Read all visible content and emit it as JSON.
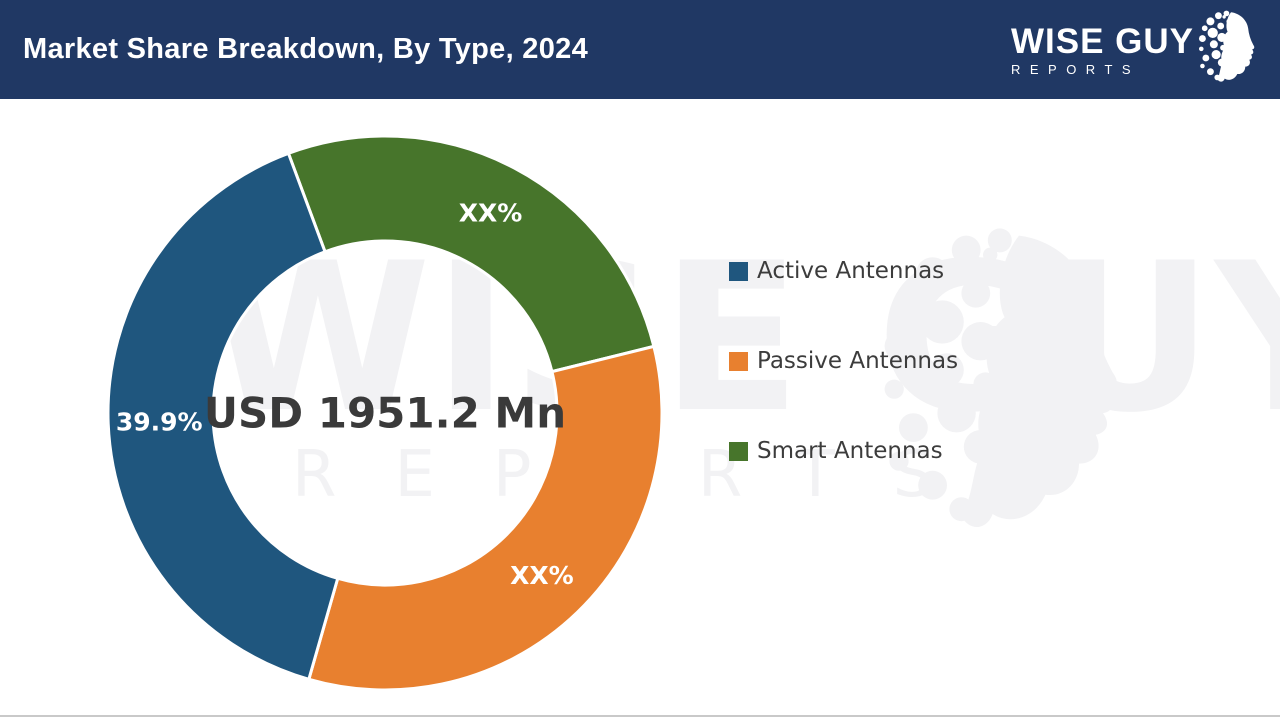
{
  "header": {
    "title": "Market Share Breakdown, By Type, 2024",
    "logo": {
      "wordmark": "WISE GUY",
      "subtitle": "REPORTS"
    }
  },
  "watermark": {
    "wordmark": "WISE GUY",
    "subtitle": "REPORTS"
  },
  "chart_data": {
    "type": "pie",
    "subtype": "donut",
    "title": "Market Share Breakdown, By Type, 2024",
    "center_label": "USD 1951.2 Mn",
    "start_angle_deg": -20.4,
    "legend_position": "right",
    "slices": [
      {
        "name": "Smart Antennas",
        "label": "XX%",
        "value_pct": 26.8,
        "color": "#47752b"
      },
      {
        "name": "Passive Antennas",
        "label": "XX%",
        "value_pct": 33.3,
        "color": "#e8802f"
      },
      {
        "name": "Active Antennas",
        "label": "39.9%",
        "value_pct": 39.9,
        "color": "#1f567e"
      }
    ],
    "legend": [
      "Active Antennas",
      "Passive Antennas",
      "Smart Antennas"
    ]
  },
  "colors": {
    "header_bg": "#203864",
    "text_dark": "#3a3a3a",
    "watermark": "#f2f2f4",
    "footer_line": "#c9c9c9"
  }
}
